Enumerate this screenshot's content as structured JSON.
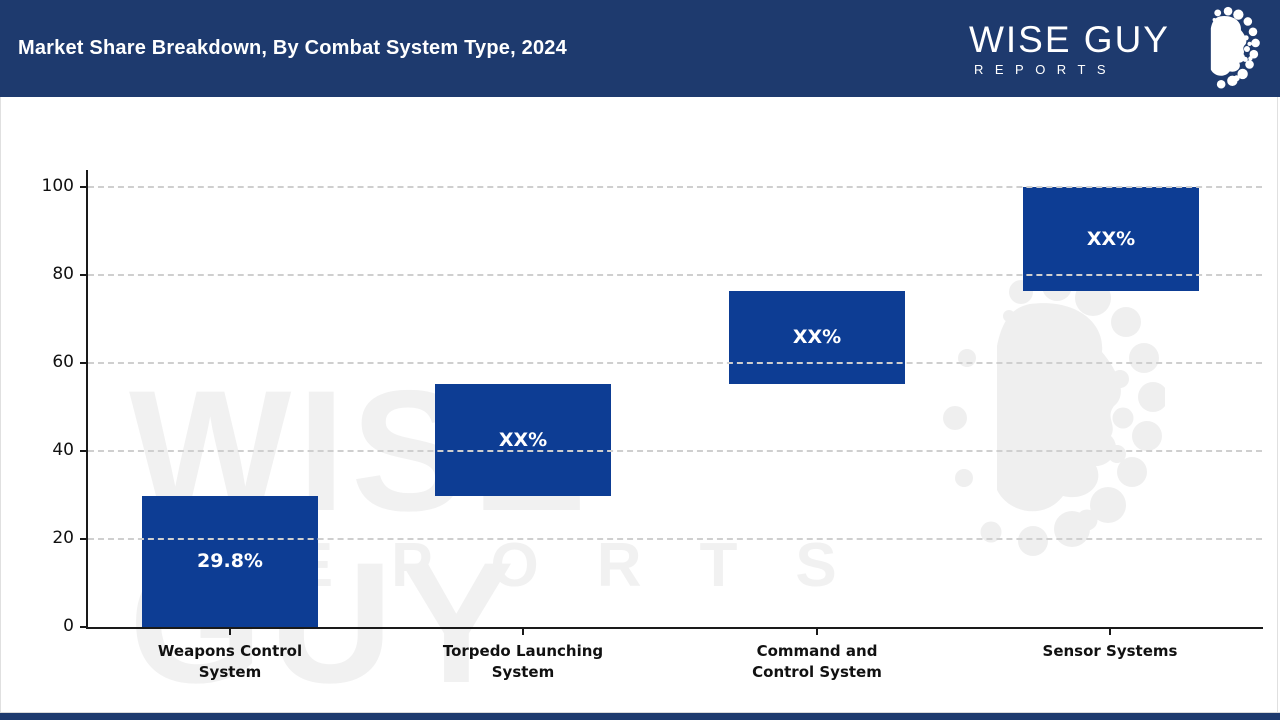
{
  "header": {
    "title": "Market Share Breakdown, By Combat System Type, 2024",
    "logo": {
      "name": "WISE GUY",
      "tagline": "REPORTS"
    }
  },
  "watermark": {
    "name": "WISE GUY",
    "tagline": "REPORTS"
  },
  "chart_data": {
    "type": "bar",
    "subtype": "floating-waterfall",
    "title": "Market Share Breakdown, By Combat System Type, 2024",
    "categories": [
      "Weapons Control System",
      "Torpedo Launching System",
      "Command and Control System",
      "Sensor Systems"
    ],
    "category_lines": [
      {
        "line1": "Weapons Control",
        "line2": "System"
      },
      {
        "line1": "Torpedo Launching",
        "line2": "System"
      },
      {
        "line1": "Command and",
        "line2": "Control System"
      },
      {
        "line1": "Sensor Systems",
        "line2": ""
      }
    ],
    "bars": [
      {
        "category": "Weapons Control System",
        "label": "29.8%",
        "start": 0,
        "end": 29.8
      },
      {
        "category": "Torpedo Launching System",
        "label": "XX%",
        "start": 29.8,
        "end": 55.2
      },
      {
        "category": "Command and Control System",
        "label": "XX%",
        "start": 55.2,
        "end": 76.4
      },
      {
        "category": "Sensor Systems",
        "label": "XX%",
        "start": 76.4,
        "end": 100
      }
    ],
    "yticks": [
      0,
      20,
      40,
      60,
      80,
      100
    ],
    "ylim": [
      0,
      104
    ],
    "xlabel": "",
    "ylabel": "",
    "grid": "dashed-horizontal",
    "legend": "none",
    "bar_color": "#0d3d94"
  },
  "colors": {
    "header_bg": "#1e3a6e",
    "footer_bg": "#1e3a6e",
    "bar": "#0d3d94",
    "gridline": "#cfcfcf",
    "axis": "#1a1a1a",
    "watermark": "#f1f1f1"
  }
}
